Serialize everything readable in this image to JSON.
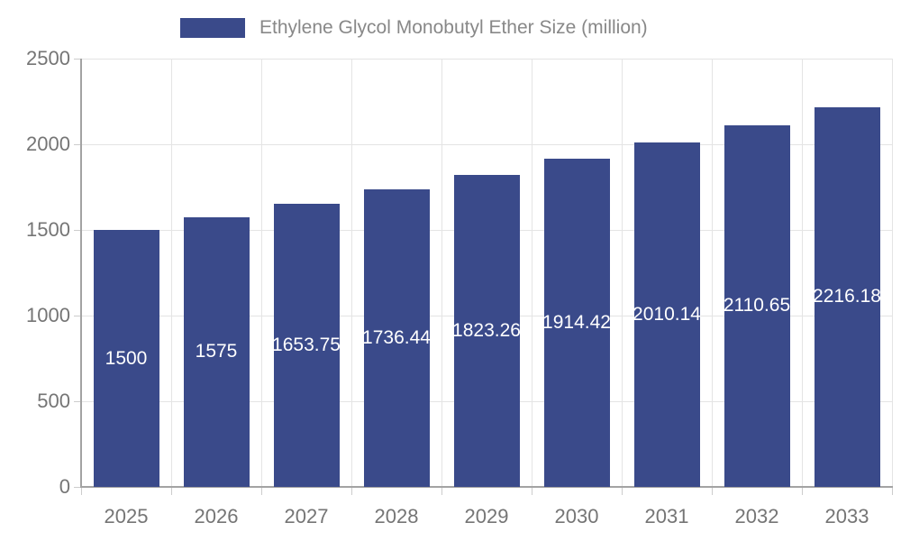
{
  "chart_data": {
    "type": "bar",
    "title": "Ethylene Glycol Monobutyl Ether Size (million)",
    "legend": {
      "label": "Ethylene Glycol Monobutyl Ether Size (million)",
      "position": "top"
    },
    "categories": [
      "2025",
      "2026",
      "2027",
      "2028",
      "2029",
      "2030",
      "2031",
      "2032",
      "2033"
    ],
    "values": [
      1500,
      1575,
      1653.75,
      1736.44,
      1823.26,
      1914.42,
      2010.14,
      2110.65,
      2216.18
    ],
    "value_labels": [
      "1500",
      "1575",
      "1653.75",
      "1736.44",
      "1823.26",
      "1914.42",
      "2010.14",
      "2110.65",
      "2216.18"
    ],
    "xlabel": "",
    "ylabel": "",
    "ylim": [
      0,
      2500
    ],
    "yticks": [
      0,
      500,
      1000,
      1500,
      2000,
      2500
    ],
    "ytick_labels": [
      "0",
      "500",
      "1000",
      "1500",
      "2000",
      "2500"
    ],
    "grid": true,
    "legend_position": "top",
    "colors": {
      "bar": "#3A4A8A",
      "bar_label_text": "#ffffff",
      "axis_text": "#757575",
      "legend_text": "#888888",
      "gridline": "#e4e4e4",
      "axis_line": "#a3a3a3",
      "tick": "#cccccc",
      "background": "#ffffff"
    }
  }
}
